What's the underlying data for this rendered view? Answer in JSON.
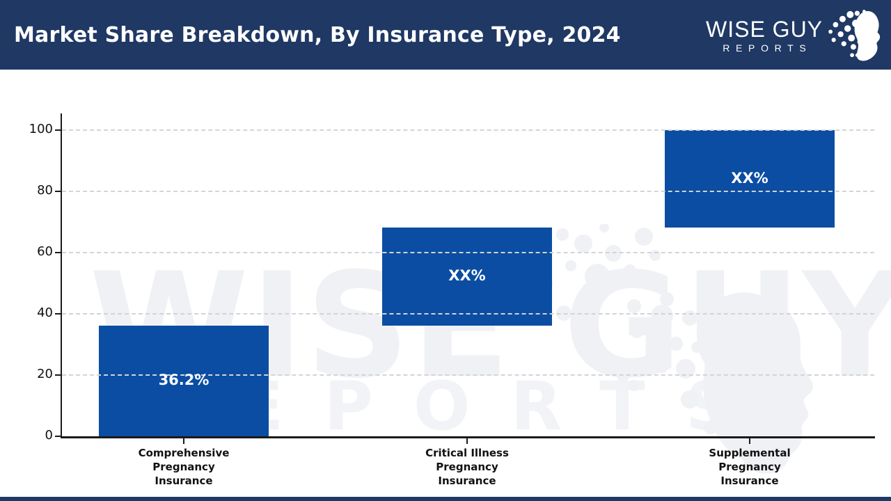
{
  "header": {
    "title": "Market Share Breakdown, By Insurance Type, 2024",
    "logo": {
      "line1": "WISE GUY",
      "line2": "REPORTS"
    }
  },
  "watermark": {
    "line1": "WISE GUY",
    "line2": "REPORTS"
  },
  "chart_data": {
    "type": "bar",
    "subtype": "waterfall-stacked-floating",
    "title": "Market Share Breakdown, By Insurance Type, 2024",
    "xlabel": "",
    "ylabel": "",
    "categories": [
      "Comprehensive Pregnancy Insurance",
      "Critical Illness Pregnancy Insurance",
      "Supplemental Pregnancy Insurance"
    ],
    "categories_lines": [
      [
        "Comprehensive",
        "Pregnancy",
        "Insurance"
      ],
      [
        "Critical Illness",
        "Pregnancy",
        "Insurance"
      ],
      [
        "Supplemental",
        "Pregnancy",
        "Insurance"
      ]
    ],
    "segments": [
      {
        "label": "36.2%",
        "start": 0,
        "end": 36.2
      },
      {
        "label": "XX%",
        "start": 36.2,
        "end": 68.2
      },
      {
        "label": "XX%",
        "start": 68.2,
        "end": 100
      }
    ],
    "yticks": [
      0,
      20,
      40,
      60,
      80,
      100
    ],
    "ylim": [
      0,
      107
    ],
    "grid": "horizontal-dashed",
    "legend": "none",
    "bar_color": "#0b4da2",
    "bar_label_color": "#ffffff"
  },
  "colors": {
    "header_bg": "#1f3864",
    "bar": "#0b4da2",
    "grid": "#d2d4d8",
    "axis": "#1a1a1a",
    "watermark": "#f0f1f4"
  }
}
